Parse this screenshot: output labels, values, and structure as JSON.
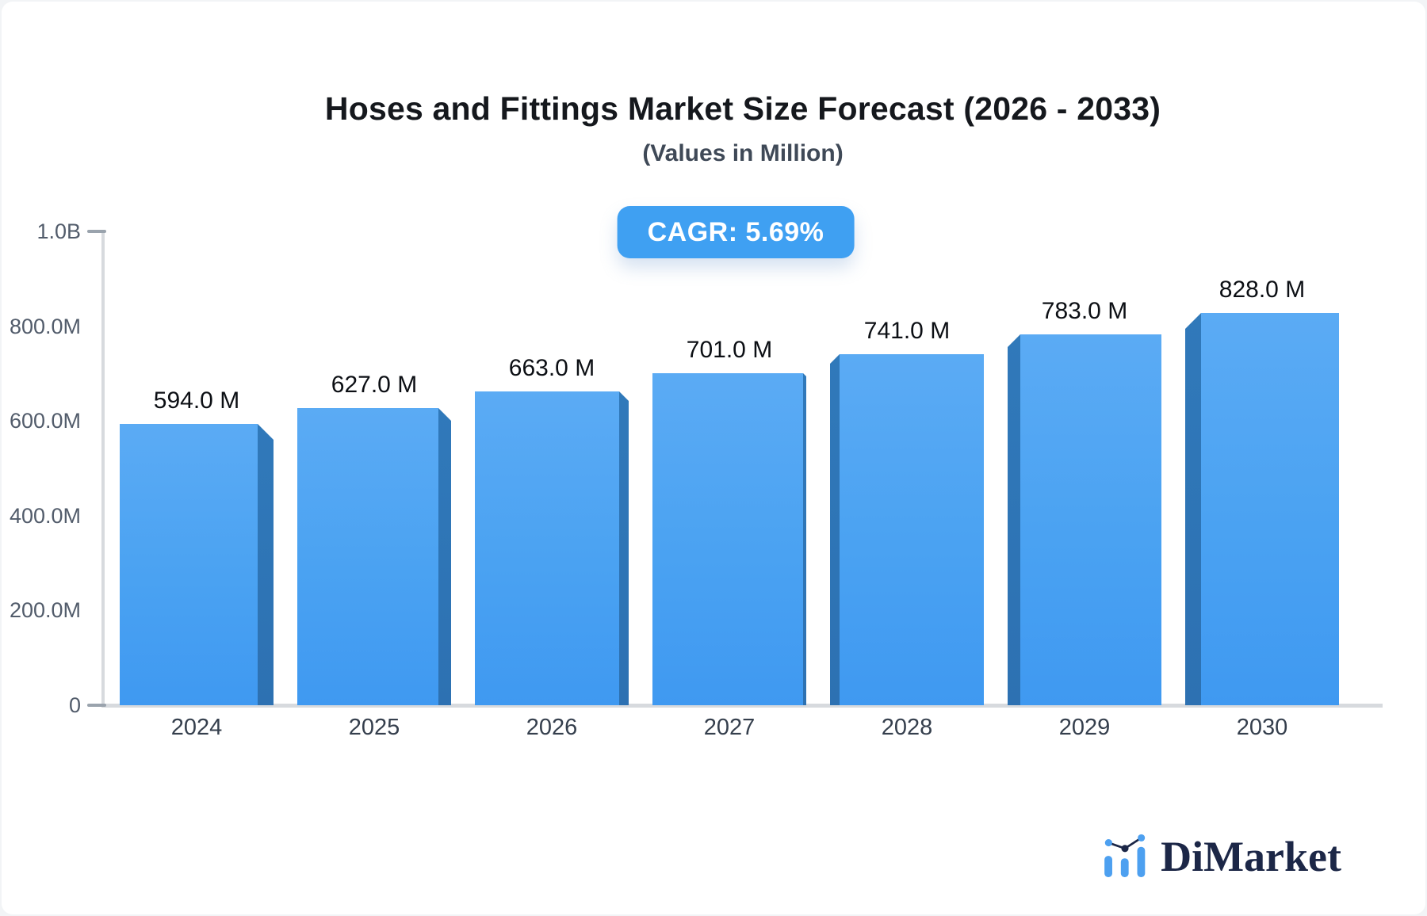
{
  "header": {
    "title": "Hoses and Fittings Market Size Forecast (2026 - 2033)",
    "subtitle": "(Values in Million)"
  },
  "badge": {
    "label": "CAGR: 5.69%",
    "background": "#3fa0f2",
    "text_color": "#ffffff"
  },
  "chart_data": {
    "type": "bar",
    "title": "Hoses and Fittings Market Size Forecast (2026 - 2033)",
    "subtitle": "(Values in Million)",
    "unit": "Million",
    "cagr_percent": 5.69,
    "categories": [
      "2024",
      "2025",
      "2026",
      "2027",
      "2028",
      "2029",
      "2030"
    ],
    "values": [
      594,
      627,
      663,
      701,
      741,
      783,
      828
    ],
    "bar_labels": [
      "594.0 M",
      "627.0 M",
      "663.0 M",
      "701.0 M",
      "741.0 M",
      "783.0 M",
      "828.0 M"
    ],
    "y_ticks": [
      {
        "label": "1.0B",
        "value": 1000
      },
      {
        "label": "800.0M",
        "value": 800
      },
      {
        "label": "600.0M",
        "value": 600
      },
      {
        "label": "400.0M",
        "value": 400
      },
      {
        "label": "200.0M",
        "value": 200
      },
      {
        "label": "0",
        "value": 0
      }
    ],
    "ylim": [
      0,
      1000
    ],
    "grid": false,
    "legend": false,
    "bar_color_top": "#5babf4",
    "bar_color_bottom": "#3f99f1",
    "bar_side_color": "#2d71b2",
    "axis_color": "#d7dade",
    "style": "3d-perspective-columns"
  },
  "footer": {
    "brand": "DiMarket"
  }
}
